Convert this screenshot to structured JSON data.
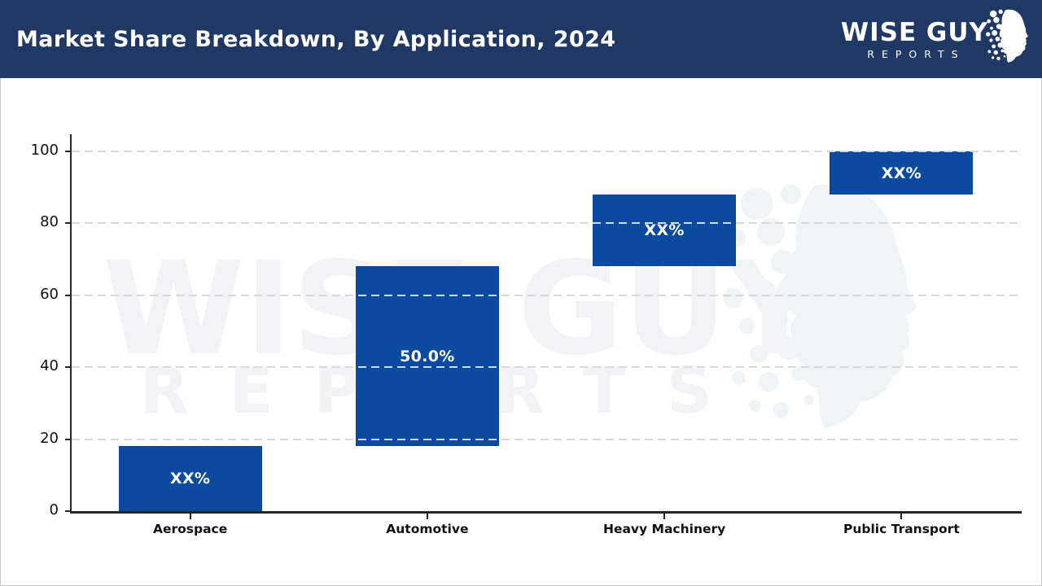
{
  "header": {
    "title": "Market Share Breakdown, By Application, 2024",
    "logo": {
      "line1": "WISE GUY",
      "line2": "REPORTS"
    }
  },
  "watermark": {
    "line1": "WISE GUY",
    "line2": "REPORTS"
  },
  "colors": {
    "header_bg": "#203864",
    "bar": "#0b4a9f",
    "grid": "#d8d8d8",
    "axis": "#262626",
    "bar_label_text": "#ffffff",
    "watermark": "#f3f3f5"
  },
  "chart_data": {
    "type": "bar",
    "subtype": "floating-waterfall",
    "title": "Market Share Breakdown, By Application, 2024",
    "categories": [
      "Aerospace",
      "Automotive",
      "Heavy Machinery",
      "Public Transport"
    ],
    "series": [
      {
        "name": "Market Share",
        "segments": [
          {
            "category": "Aerospace",
            "start": 0,
            "end": 18,
            "label": "XX%"
          },
          {
            "category": "Automotive",
            "start": 18,
            "end": 68,
            "label": "50.0%"
          },
          {
            "category": "Heavy Machinery",
            "start": 68,
            "end": 88,
            "label": "XX%"
          },
          {
            "category": "Public Transport",
            "start": 88,
            "end": 100,
            "label": "XX%"
          }
        ]
      }
    ],
    "xlabel": "",
    "ylabel": "",
    "ylim": [
      0,
      100
    ],
    "yticks": [
      0,
      20,
      40,
      60,
      80,
      100
    ],
    "grid": "horizontal-dashed",
    "legend": "none"
  }
}
